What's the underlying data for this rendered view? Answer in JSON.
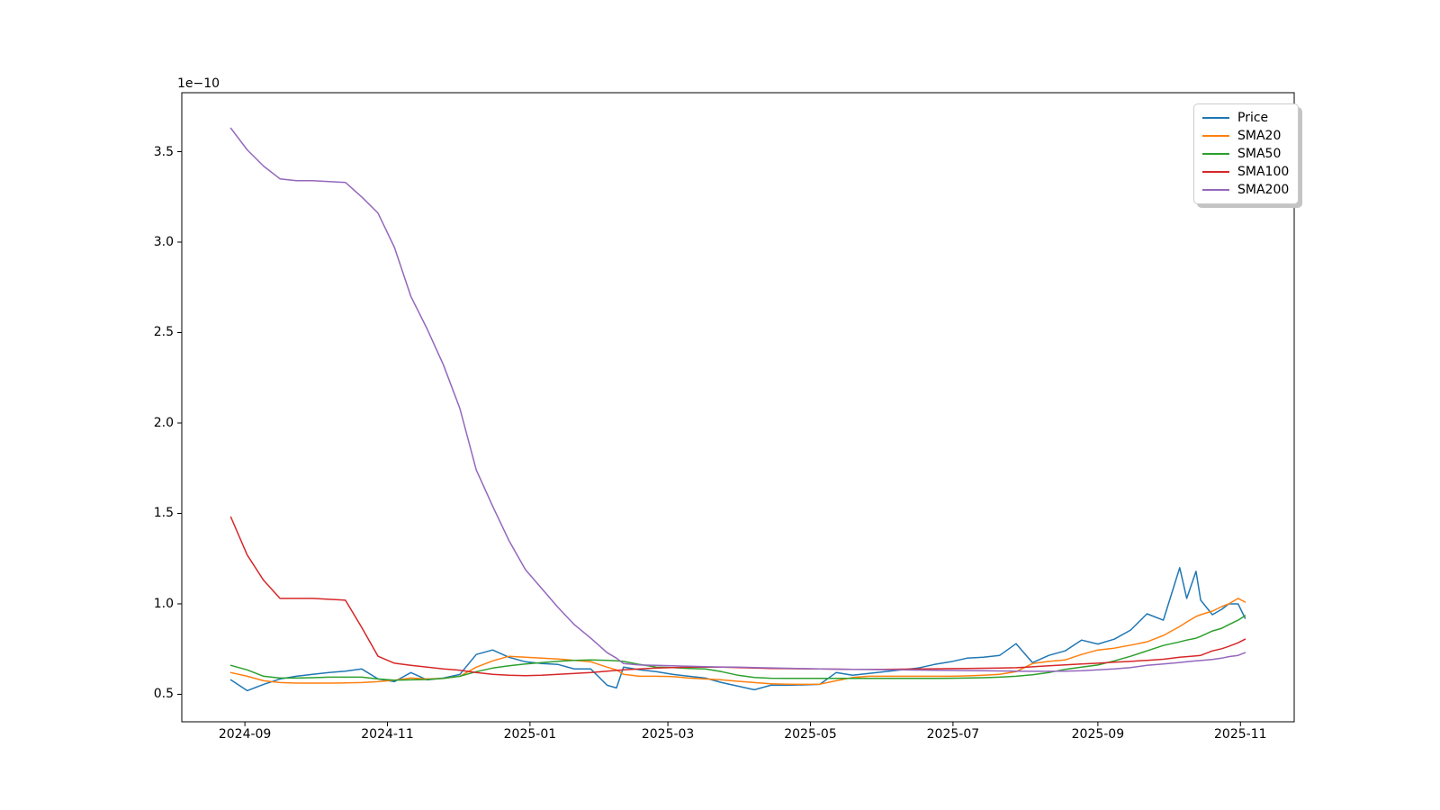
{
  "figure": {
    "background": "#ffffff",
    "plot_background": "#ffffff",
    "spine_color": "#000000"
  },
  "chart_data": {
    "type": "line",
    "title": "",
    "xlabel": "",
    "ylabel": "",
    "offset_label": "1e−10",
    "unit_multiplier": "1e-10",
    "grid": false,
    "legend": {
      "position": "upper right",
      "entries": [
        "Price",
        "SMA20",
        "SMA50",
        "SMA100",
        "SMA200"
      ]
    },
    "xlim": [
      "2024-08-05",
      "2025-11-24"
    ],
    "ylim": [
      0.348,
      3.826
    ],
    "y_ticks": [
      {
        "value": 0.5,
        "label": "0.5"
      },
      {
        "value": 1.0,
        "label": "1.0"
      },
      {
        "value": 1.5,
        "label": "1.5"
      },
      {
        "value": 2.0,
        "label": "2.0"
      },
      {
        "value": 2.5,
        "label": "2.5"
      },
      {
        "value": 3.0,
        "label": "3.0"
      },
      {
        "value": 3.5,
        "label": "3.5"
      }
    ],
    "x_ticks": [
      {
        "date": "2024-09-01",
        "label": "2024-09"
      },
      {
        "date": "2024-11-01",
        "label": "2024-11"
      },
      {
        "date": "2025-01-01",
        "label": "2025-01"
      },
      {
        "date": "2025-03-01",
        "label": "2025-03"
      },
      {
        "date": "2025-05-01",
        "label": "2025-05"
      },
      {
        "date": "2025-07-01",
        "label": "2025-07"
      },
      {
        "date": "2025-09-01",
        "label": "2025-09"
      },
      {
        "date": "2025-11-01",
        "label": "2025-11"
      }
    ],
    "x": [
      "2024-08-26",
      "2024-09-02",
      "2024-09-09",
      "2024-09-16",
      "2024-09-23",
      "2024-09-30",
      "2024-10-07",
      "2024-10-14",
      "2024-10-21",
      "2024-10-28",
      "2024-11-04",
      "2024-11-11",
      "2024-11-18",
      "2024-11-25",
      "2024-12-02",
      "2024-12-09",
      "2024-12-16",
      "2024-12-23",
      "2024-12-30",
      "2025-01-06",
      "2025-01-13",
      "2025-01-20",
      "2025-01-27",
      "2025-02-03",
      "2025-02-07",
      "2025-02-10",
      "2025-02-17",
      "2025-02-24",
      "2025-03-03",
      "2025-03-10",
      "2025-03-17",
      "2025-03-24",
      "2025-03-31",
      "2025-04-07",
      "2025-04-14",
      "2025-04-21",
      "2025-04-28",
      "2025-05-05",
      "2025-05-12",
      "2025-05-19",
      "2025-05-26",
      "2025-06-02",
      "2025-06-09",
      "2025-06-16",
      "2025-06-23",
      "2025-06-30",
      "2025-07-07",
      "2025-07-14",
      "2025-07-21",
      "2025-07-28",
      "2025-08-04",
      "2025-08-11",
      "2025-08-18",
      "2025-08-25",
      "2025-09-01",
      "2025-09-08",
      "2025-09-15",
      "2025-09-22",
      "2025-09-29",
      "2025-10-06",
      "2025-10-09",
      "2025-10-13",
      "2025-10-15",
      "2025-10-20",
      "2025-10-24",
      "2025-10-27",
      "2025-10-31",
      "2025-11-03"
    ],
    "series": [
      {
        "name": "Price",
        "color": "#1f77b4",
        "values": [
          0.58,
          0.52,
          0.555,
          0.585,
          0.6,
          0.61,
          0.62,
          0.628,
          0.64,
          0.585,
          0.57,
          0.62,
          0.58,
          0.59,
          0.61,
          0.72,
          0.745,
          0.705,
          0.68,
          0.67,
          0.665,
          0.64,
          0.64,
          0.55,
          0.535,
          0.65,
          0.635,
          0.625,
          0.61,
          0.6,
          0.59,
          0.565,
          0.545,
          0.525,
          0.55,
          0.55,
          0.552,
          0.555,
          0.62,
          0.605,
          0.615,
          0.625,
          0.635,
          0.645,
          0.665,
          0.68,
          0.7,
          0.705,
          0.715,
          0.78,
          0.675,
          0.715,
          0.74,
          0.8,
          0.778,
          0.805,
          0.855,
          0.945,
          0.91,
          1.2,
          1.03,
          1.18,
          1.02,
          0.94,
          0.97,
          1.0,
          1.0,
          0.92
        ]
      },
      {
        "name": "SMA20",
        "color": "#ff7f0e",
        "values": [
          0.62,
          0.6,
          0.575,
          0.565,
          0.562,
          0.562,
          0.562,
          0.563,
          0.565,
          0.57,
          0.578,
          0.59,
          0.585,
          0.588,
          0.6,
          0.65,
          0.685,
          0.71,
          0.705,
          0.7,
          0.695,
          0.688,
          0.68,
          0.65,
          0.635,
          0.61,
          0.6,
          0.6,
          0.598,
          0.59,
          0.585,
          0.58,
          0.572,
          0.565,
          0.558,
          0.556,
          0.555,
          0.556,
          0.575,
          0.593,
          0.6,
          0.6,
          0.6,
          0.6,
          0.6,
          0.6,
          0.602,
          0.605,
          0.61,
          0.625,
          0.67,
          0.682,
          0.69,
          0.72,
          0.745,
          0.755,
          0.772,
          0.79,
          0.825,
          0.875,
          0.9,
          0.93,
          0.94,
          0.96,
          0.985,
          1.0,
          1.03,
          1.01
        ]
      },
      {
        "name": "SMA50",
        "color": "#2ca02c",
        "values": [
          0.66,
          0.635,
          0.6,
          0.59,
          0.59,
          0.592,
          0.595,
          0.595,
          0.595,
          0.585,
          0.578,
          0.58,
          0.582,
          0.588,
          0.6,
          0.625,
          0.645,
          0.658,
          0.668,
          0.675,
          0.683,
          0.688,
          0.69,
          0.688,
          0.685,
          0.682,
          0.665,
          0.65,
          0.648,
          0.643,
          0.64,
          0.625,
          0.605,
          0.593,
          0.589,
          0.588,
          0.588,
          0.588,
          0.588,
          0.588,
          0.588,
          0.588,
          0.588,
          0.588,
          0.588,
          0.589,
          0.59,
          0.592,
          0.595,
          0.6,
          0.608,
          0.62,
          0.638,
          0.65,
          0.662,
          0.685,
          0.71,
          0.74,
          0.77,
          0.79,
          0.8,
          0.81,
          0.82,
          0.85,
          0.865,
          0.885,
          0.91,
          0.935
        ]
      },
      {
        "name": "SMA100",
        "color": "#d62728",
        "values": [
          1.48,
          1.27,
          1.13,
          1.03,
          1.03,
          1.03,
          1.025,
          1.02,
          0.87,
          0.71,
          0.672,
          0.66,
          0.65,
          0.64,
          0.633,
          0.62,
          0.61,
          0.605,
          0.603,
          0.605,
          0.61,
          0.615,
          0.62,
          0.628,
          0.632,
          0.635,
          0.64,
          0.645,
          0.648,
          0.65,
          0.65,
          0.65,
          0.648,
          0.645,
          0.643,
          0.642,
          0.641,
          0.64,
          0.639,
          0.638,
          0.638,
          0.638,
          0.639,
          0.64,
          0.641,
          0.642,
          0.643,
          0.644,
          0.645,
          0.647,
          0.652,
          0.658,
          0.663,
          0.668,
          0.672,
          0.678,
          0.682,
          0.688,
          0.694,
          0.705,
          0.708,
          0.712,
          0.715,
          0.74,
          0.752,
          0.765,
          0.785,
          0.805
        ]
      },
      {
        "name": "SMA200",
        "color": "#9467bd",
        "values": [
          3.63,
          3.51,
          3.42,
          3.35,
          3.34,
          3.34,
          3.335,
          3.33,
          3.25,
          3.16,
          2.97,
          2.7,
          2.52,
          2.32,
          2.08,
          1.74,
          1.54,
          1.35,
          1.19,
          1.085,
          0.98,
          0.885,
          0.81,
          0.73,
          0.7,
          0.67,
          0.662,
          0.66,
          0.658,
          0.655,
          0.653,
          0.651,
          0.65,
          0.648,
          0.646,
          0.644,
          0.642,
          0.64,
          0.639,
          0.638,
          0.637,
          0.636,
          0.635,
          0.634,
          0.633,
          0.632,
          0.631,
          0.63,
          0.629,
          0.628,
          0.627,
          0.627,
          0.628,
          0.63,
          0.635,
          0.64,
          0.648,
          0.66,
          0.668,
          0.676,
          0.68,
          0.685,
          0.687,
          0.693,
          0.7,
          0.708,
          0.715,
          0.73
        ]
      }
    ]
  }
}
